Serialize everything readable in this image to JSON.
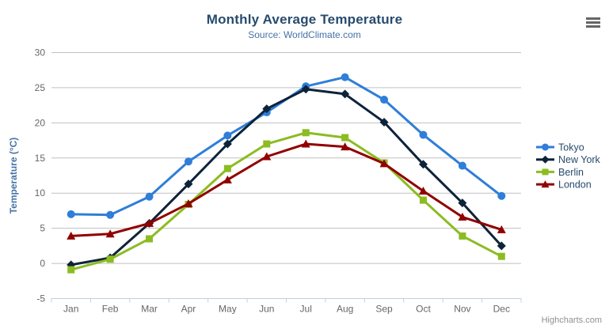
{
  "header": {
    "title": "Monthly Average Temperature",
    "subtitle": "Source: WorldClimate.com"
  },
  "credits": {
    "label": "Highcharts.com"
  },
  "chart_data": {
    "type": "line",
    "title": "Monthly Average Temperature",
    "subtitle": "Source: WorldClimate.com",
    "categories": [
      "Jan",
      "Feb",
      "Mar",
      "Apr",
      "May",
      "Jun",
      "Jul",
      "Aug",
      "Sep",
      "Oct",
      "Nov",
      "Dec"
    ],
    "series": [
      {
        "name": "Tokyo",
        "color": "#2f7ed8",
        "marker": "circle",
        "values": [
          7.0,
          6.9,
          9.5,
          14.5,
          18.2,
          21.5,
          25.2,
          26.5,
          23.3,
          18.3,
          13.9,
          9.6
        ]
      },
      {
        "name": "New York",
        "color": "#0d233a",
        "marker": "diamond",
        "values": [
          -0.2,
          0.8,
          5.7,
          11.3,
          17.0,
          22.0,
          24.8,
          24.1,
          20.1,
          14.1,
          8.6,
          2.5
        ]
      },
      {
        "name": "Berlin",
        "color": "#8bbc21",
        "marker": "square",
        "values": [
          -0.9,
          0.6,
          3.5,
          8.4,
          13.5,
          17.0,
          18.6,
          17.9,
          14.3,
          9.0,
          3.9,
          1.0
        ]
      },
      {
        "name": "London",
        "color": "#910000",
        "marker": "triangle",
        "values": [
          3.9,
          4.2,
          5.7,
          8.5,
          11.9,
          15.2,
          17.0,
          16.6,
          14.2,
          10.3,
          6.6,
          4.8
        ]
      }
    ],
    "xlabel": "",
    "ylabel": "Temperature (°C)",
    "ylim": [
      -5,
      30
    ],
    "ytick_interval": 5,
    "grid": true,
    "legend_position": "right"
  },
  "colors": {
    "title": "#274b6d",
    "subtitle": "#4572a7",
    "axis_title": "#4572a7",
    "axis_label": "#666666",
    "gridline": "#c0c0c0",
    "axis_line": "#c0d0e0",
    "legend_text": "#274b6d",
    "credits": "#909090",
    "menu_icon": "#666666",
    "background": "#ffffff"
  }
}
